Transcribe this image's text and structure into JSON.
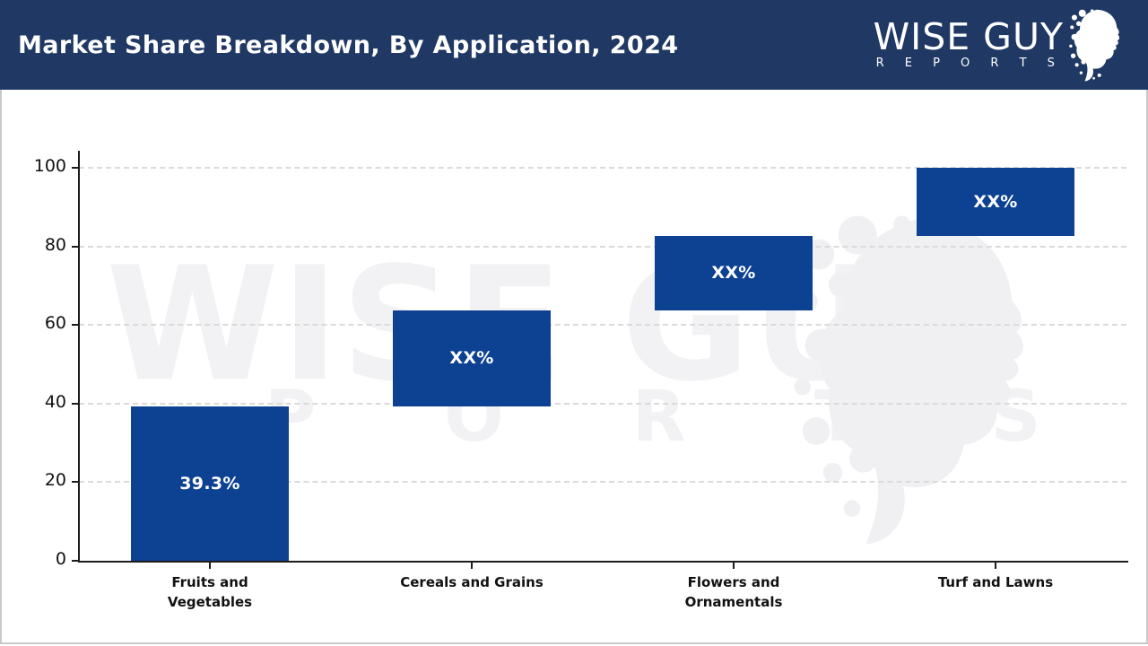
{
  "header": {
    "title": "Market Share Breakdown, By Application, 2024",
    "bg_color": "#203864",
    "logo": {
      "line1": "WISE GUY",
      "line2": "R E P O R T S"
    }
  },
  "watermark": {
    "line1": "WISE GUY",
    "line2": "P O R T S"
  },
  "chart_data": {
    "type": "bar",
    "subtype": "floating-waterfall",
    "title": "Market Share Breakdown, By Application, 2024",
    "categories": [
      "Fruits and Vegetables",
      "Cereals and Grains",
      "Flowers and Ornamentals",
      "Turf and Lawns"
    ],
    "category_display_lines": [
      [
        "Fruits and",
        "Vegetables"
      ],
      [
        "Cereals and Grains"
      ],
      [
        "Flowers and",
        "Ornamentals"
      ],
      [
        "Turf and Lawns"
      ]
    ],
    "bars": [
      {
        "category": "Fruits and Vegetables",
        "base": 0,
        "top": 39.3,
        "label": "39.3%"
      },
      {
        "category": "Cereals and Grains",
        "base": 39.3,
        "top": 63.8,
        "label": "XX%"
      },
      {
        "category": "Flowers and Ornamentals",
        "base": 63.8,
        "top": 82.6,
        "label": "XX%"
      },
      {
        "category": "Turf and Lawns",
        "base": 82.6,
        "top": 100,
        "label": "XX%"
      }
    ],
    "ylim": [
      0,
      100
    ],
    "yticks": [
      0,
      20,
      40,
      60,
      80,
      100
    ],
    "xlabel": "",
    "ylabel": "",
    "grid": true,
    "legend": false,
    "colors": {
      "bar": "#0d4192",
      "bar_label": "#ffffff",
      "axis": "#1c1c1c",
      "gridline": "#dadada",
      "header_bg": "#203864",
      "watermark": "#f2f2f4"
    }
  }
}
